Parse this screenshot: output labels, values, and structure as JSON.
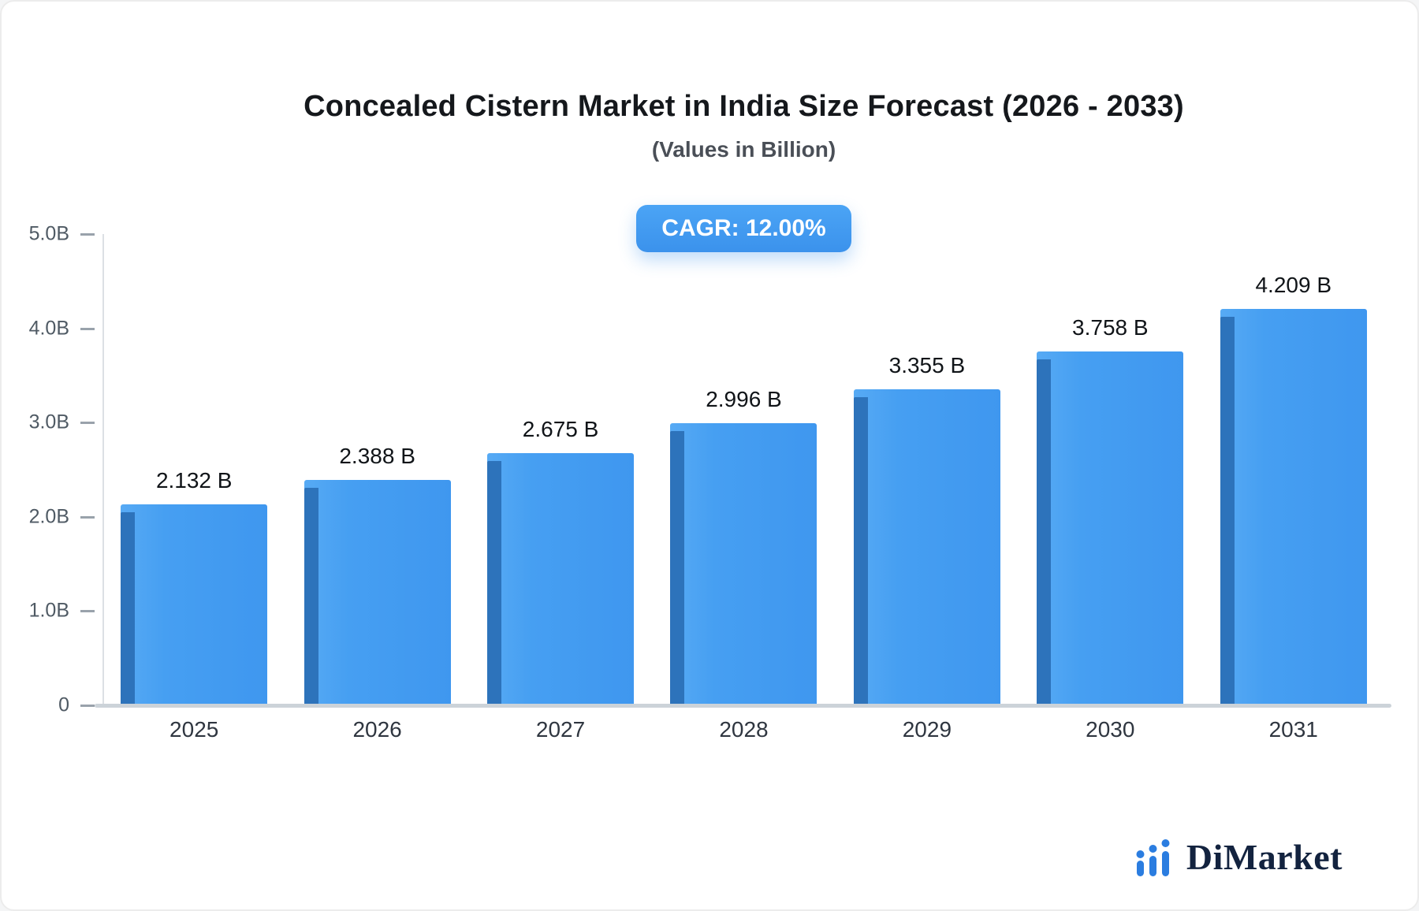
{
  "chart_data": {
    "type": "bar",
    "title": "Concealed Cistern Market in India Size Forecast (2026 - 2033)",
    "subtitle": "(Values in Billion)",
    "badge": "CAGR: 12.00%",
    "categories": [
      "2025",
      "2026",
      "2027",
      "2028",
      "2029",
      "2030",
      "2031"
    ],
    "values": [
      2.132,
      2.388,
      2.675,
      2.996,
      3.355,
      3.758,
      4.209
    ],
    "value_labels": [
      "2.132 B",
      "2.388 B",
      "2.675 B",
      "2.996 B",
      "3.355 B",
      "3.758 B",
      "4.209 B"
    ],
    "ylabel_ticks": [
      "0",
      "1.0B",
      "2.0B",
      "3.0B",
      "4.0B",
      "5.0B"
    ],
    "ylim": [
      0,
      5.0
    ],
    "grid": false,
    "legend": false,
    "bar_color": "#45a0f2",
    "bar_edge_color": "#2d73bb",
    "badge_color": "#3b92ec"
  },
  "branding": {
    "logo_text": "DiMarket",
    "logo_icon": "bar-chart-icon",
    "logo_text_color": "#13233f",
    "logo_icon_color": "#2b7de0"
  }
}
